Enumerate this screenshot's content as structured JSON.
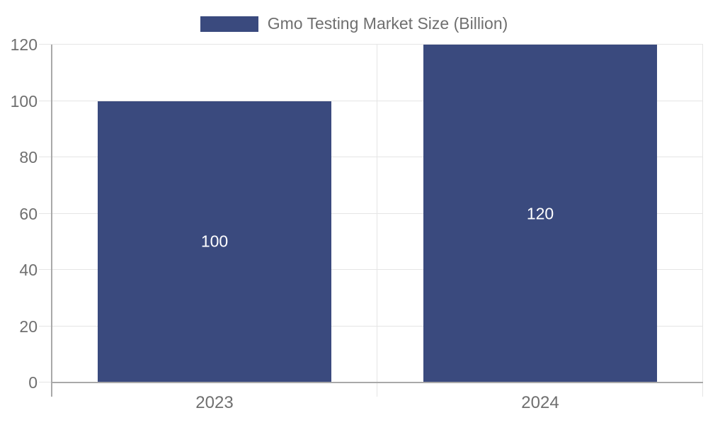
{
  "legend": {
    "label": "Gmo Testing Market Size (Billion)"
  },
  "colors": {
    "bar": "#3a4a7e",
    "legend_text": "#6f6f6f",
    "tick_text": "#6f6f6f",
    "axis_line": "#a9a9a9",
    "grid_line": "#e5e5e5",
    "bar_label_text": "#ffffff",
    "background": "#ffffff"
  },
  "chart_data": {
    "type": "bar",
    "title": "Gmo Testing Market Size (Billion)",
    "categories": [
      "2023",
      "2024"
    ],
    "series": [
      {
        "name": "Gmo Testing Market Size (Billion)",
        "values": [
          100,
          120
        ]
      }
    ],
    "values": [
      100,
      120
    ],
    "data_labels": [
      "100",
      "120"
    ],
    "data_label_position": "inside-center",
    "xlabel": "",
    "ylabel": "",
    "ylim": [
      0,
      120
    ],
    "yticks": [
      0,
      20,
      40,
      60,
      80,
      100,
      120
    ],
    "grid": true,
    "legend_position": "top-center"
  }
}
